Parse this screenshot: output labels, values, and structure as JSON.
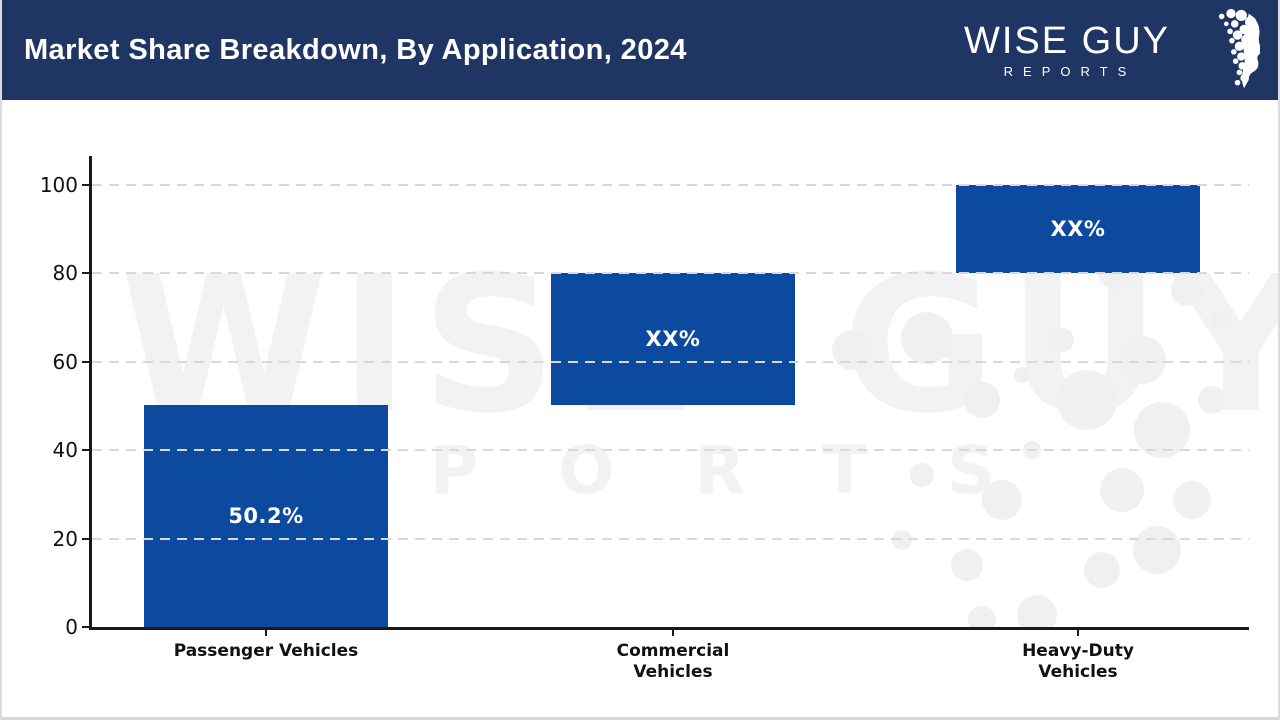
{
  "header": {
    "title": "Market Share Breakdown, By Application, 2024",
    "logo": {
      "line1": "WISE GUY",
      "line2": "REPORTS"
    }
  },
  "watermark": {
    "line1": "WISE GUY",
    "line2": "REPORTS"
  },
  "chart_data": {
    "type": "bar",
    "subtype": "waterfall-floating-bars",
    "title": "Market Share Breakdown, By Application, 2024",
    "categories": [
      {
        "lines": [
          "Passenger Vehicles"
        ]
      },
      {
        "lines": [
          "Commercial",
          "Vehicles"
        ]
      },
      {
        "lines": [
          "Heavy-Duty",
          "Vehicles"
        ]
      }
    ],
    "bars": [
      {
        "category": "Passenger Vehicles",
        "start": 0,
        "end": 50.2,
        "label": "50.2%"
      },
      {
        "category": "Commercial Vehicles",
        "start": 50.2,
        "end": 80,
        "label": "XX%"
      },
      {
        "category": "Heavy-Duty Vehicles",
        "start": 80,
        "end": 100,
        "label": "XX%"
      }
    ],
    "ylabel": "",
    "xlabel": "",
    "ylim": [
      0,
      100
    ],
    "yticks": [
      0,
      20,
      40,
      60,
      80,
      100
    ],
    "grid": "horizontal dashed, drawn over bars",
    "legend": "none"
  },
  "colors": {
    "header_bg": "#1f3563",
    "bar_fill": "#0b4a9f",
    "bar_label_text": "#ffffff",
    "grid_line": "#d8d8d8",
    "axis_line": "#1a1a1a",
    "tick_text": "#111111",
    "watermark": "#f2f2f5",
    "page_border": "#dcdcdc"
  }
}
